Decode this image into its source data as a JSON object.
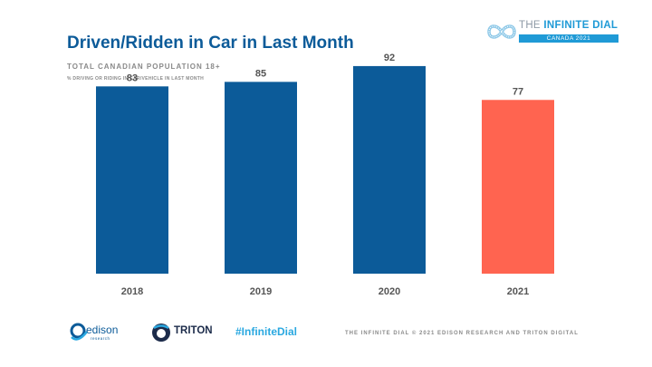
{
  "header": {
    "title": "Driven/Ridden in Car in Last Month",
    "subtitle": "TOTAL CANADIAN POPULATION 18+",
    "note": "% DRIVING OR RIDING IN CAR/VEHICLE IN LAST MONTH"
  },
  "brand": {
    "line1_part1": "THE ",
    "line1_part2": "INFINITE DIAL",
    "line2": "CANADA 2021"
  },
  "chart_data": {
    "type": "bar",
    "categories": [
      "2018",
      "2019",
      "2020",
      "2021"
    ],
    "values": [
      83,
      85,
      92,
      77
    ],
    "colors": [
      "#0c5b99",
      "#0c5b99",
      "#0c5b99",
      "#ff6450"
    ],
    "title": "Driven/Ridden in Car in Last Month",
    "ylabel": "",
    "xlabel": "",
    "ylim": [
      0,
      100
    ],
    "grid": false
  },
  "footer": {
    "edison": "edison",
    "edison_sub": "research",
    "triton": "TRITON",
    "hashtag": "#InfiniteDial",
    "copyright": "THE INFINITE DIAL  © 2021 EDISON RESEARCH AND TRITON DIGITAL"
  }
}
